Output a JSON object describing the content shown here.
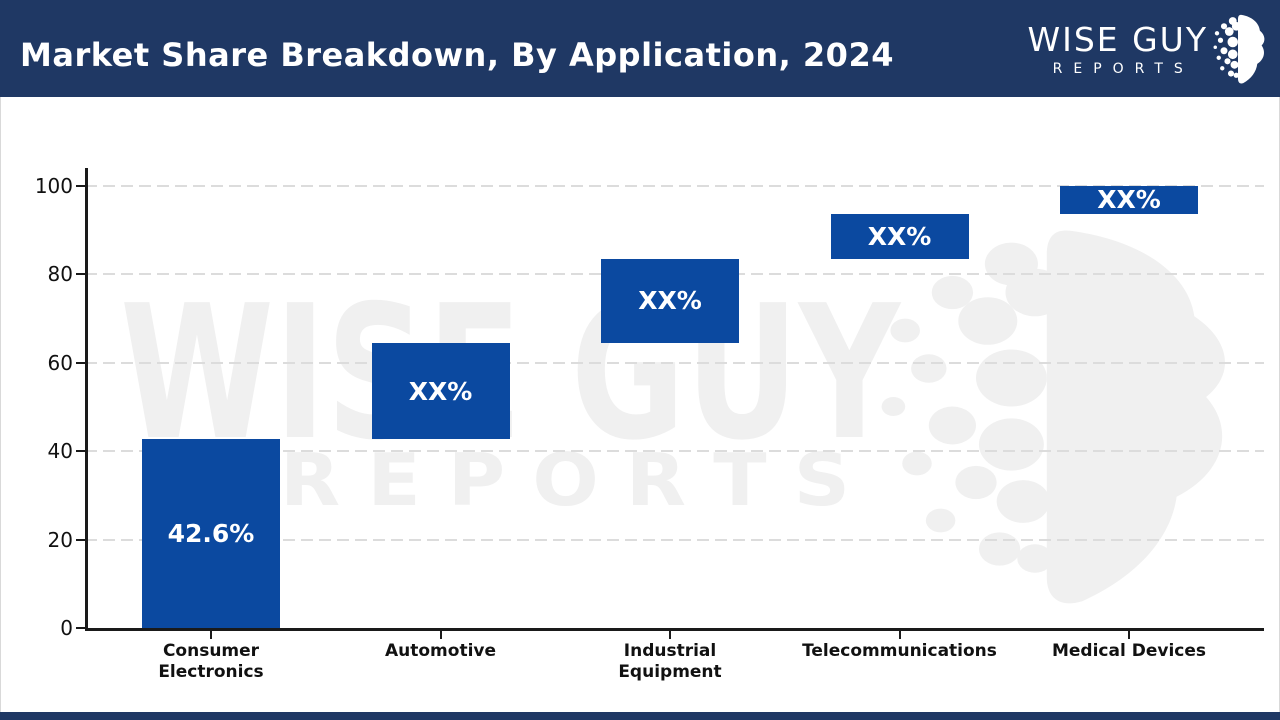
{
  "header": {
    "title": "Market Share Breakdown, By Application, 2024",
    "logo": {
      "line1": "WISE GUY",
      "line2": "REPORTS"
    }
  },
  "watermark": {
    "line1": "WISE GUY",
    "line2": "R E P O R T S"
  },
  "chart_data": {
    "type": "bar",
    "variant": "waterfall",
    "title": "Market Share Breakdown, By Application, 2024",
    "categories": [
      "Consumer Electronics",
      "Automotive",
      "Industrial Equipment",
      "Telecommunications",
      "Medical Devices"
    ],
    "category_lines": [
      [
        "Consumer",
        "Electronics"
      ],
      [
        "Automotive"
      ],
      [
        "Industrial",
        "Equipment"
      ],
      [
        "Telecommunications"
      ],
      [
        "Medical Devices"
      ]
    ],
    "segments": [
      {
        "category": "Consumer Electronics",
        "start": 0,
        "end": 42.6,
        "label": "42.6%"
      },
      {
        "category": "Automotive",
        "start": 42.6,
        "end": 64.5,
        "label": "XX%"
      },
      {
        "category": "Industrial Equipment",
        "start": 64.5,
        "end": 83.5,
        "label": "XX%"
      },
      {
        "category": "Telecommunications",
        "start": 83.5,
        "end": 93.5,
        "label": "XX%"
      },
      {
        "category": "Medical Devices",
        "start": 93.5,
        "end": 100,
        "label": "XX%"
      }
    ],
    "yticks": [
      0,
      20,
      40,
      60,
      80,
      100
    ],
    "ylim": [
      0,
      100
    ],
    "xlabel": "",
    "ylabel": "",
    "grid": true,
    "legend": false
  },
  "colors": {
    "header_bg": "#1f3864",
    "footer_bg": "#1f3864",
    "bar": "#0b49a0",
    "gridline": "#dcdcdc",
    "axis": "#1a1a1a",
    "watermark": "#f0f0f0",
    "bar_label": "#ffffff",
    "page_border": "#d9d9d9"
  }
}
